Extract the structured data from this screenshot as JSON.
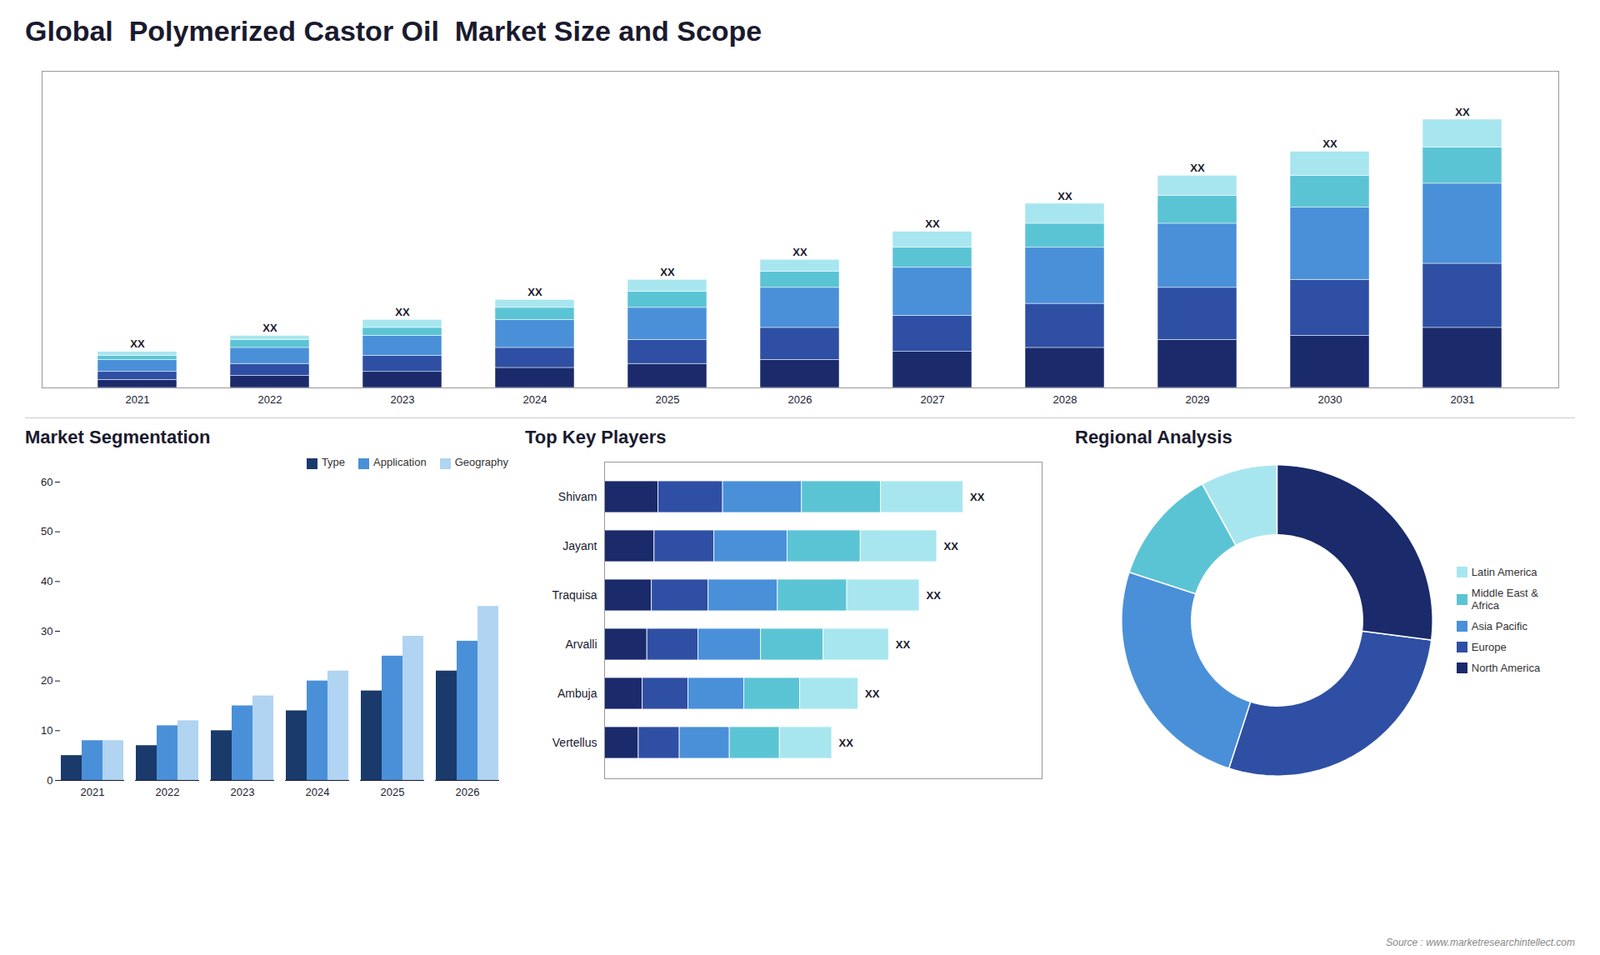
{
  "title": "Global  Polymerized Castor Oil  Market Size and Scope",
  "annotations": [
    "Source : www.marketresearchintellect.com"
  ],
  "chart_data": [
    {
      "type": "bar",
      "stacked": true,
      "categories": [
        "2021",
        "2022",
        "2023",
        "2024",
        "2025",
        "2026",
        "2027",
        "2028",
        "2029",
        "2030",
        "2031"
      ],
      "series": [
        {
          "color": "#1a2a6b",
          "values": [
            2,
            3,
            4,
            5,
            6,
            7,
            9,
            10,
            12,
            13,
            15
          ]
        },
        {
          "color": "#2e4fa3",
          "values": [
            2,
            3,
            4,
            5,
            6,
            8,
            9,
            11,
            13,
            14,
            16
          ]
        },
        {
          "color": "#4a90d9",
          "values": [
            3,
            4,
            5,
            7,
            8,
            10,
            12,
            14,
            16,
            18,
            20
          ]
        },
        {
          "color": "#5bc4d4",
          "values": [
            1,
            2,
            2,
            3,
            4,
            4,
            5,
            6,
            7,
            8,
            9
          ]
        },
        {
          "color": "#a8e6ef",
          "values": [
            1,
            1,
            2,
            2,
            3,
            3,
            4,
            5,
            5,
            6,
            7
          ]
        }
      ],
      "ylim": [
        0,
        79.06
      ],
      "tick_labels": "x",
      "grid": false,
      "annotations": [
        "XX",
        "XX",
        "XX",
        "XX",
        "XX",
        "XX",
        "XX",
        "XX",
        "XX",
        "XX",
        "XX"
      ]
    },
    {
      "type": "bar",
      "title": "Market Segmentation",
      "categories": [
        "2021",
        "2022",
        "2023",
        "2024",
        "2025",
        "2026"
      ],
      "series": [
        {
          "name": "Type",
          "color": "#1a3a6b",
          "values": [
            5,
            7,
            10,
            14,
            18,
            22
          ]
        },
        {
          "name": "Application",
          "color": "#4a90d9",
          "values": [
            8,
            11,
            15,
            20,
            25,
            28
          ]
        },
        {
          "name": "Geography",
          "color": "#b0d4f1",
          "values": [
            8,
            12,
            17,
            22,
            29,
            35
          ]
        }
      ],
      "ylim": [
        0,
        60
      ],
      "yticks": [
        0,
        10,
        20,
        30,
        40,
        50,
        60
      ],
      "legend": "upper right",
      "grid": false
    },
    {
      "type": "bar",
      "title": "Top Key Players",
      "orientation": "horizontal",
      "stacked": true,
      "categories": [
        "Shivam",
        "Jayant",
        "Traquisa",
        "Arvalli",
        "Ambuja",
        "Vertellus"
      ],
      "series": [
        {
          "color": "#1a2a6b",
          "values": [
            0.123,
            0.114,
            0.108,
            0.0975,
            0.087,
            0.078
          ]
        },
        {
          "color": "#2e4fa3",
          "values": [
            0.1476,
            0.1368,
            0.1296,
            0.117,
            0.1044,
            0.0936
          ]
        },
        {
          "color": "#4a90d9",
          "values": [
            0.1804,
            0.1672,
            0.1584,
            0.143,
            0.1276,
            0.1144
          ]
        },
        {
          "color": "#5bc4d4",
          "values": [
            0.1804,
            0.1672,
            0.1584,
            0.143,
            0.1276,
            0.1144
          ]
        },
        {
          "color": "#a8e6ef",
          "values": [
            0.1886,
            0.1748,
            0.1656,
            0.1495,
            0.1334,
            0.1196
          ]
        }
      ],
      "xlim": [
        0,
        1
      ],
      "tick_labels": "y",
      "grid": false,
      "annotations": [
        "XX",
        "XX",
        "XX",
        "XX",
        "XX",
        "XX"
      ]
    },
    {
      "type": "donut",
      "title": "Regional Analysis",
      "categories": [
        "Latin America",
        "Middle East &\nAfrica",
        "Asia Pacific",
        "Europe",
        "North America"
      ],
      "values": [
        8,
        12,
        25,
        28,
        27
      ],
      "colors": [
        "#a8e6ef",
        "#5bc4d4",
        "#4a90d9",
        "#2e4fa3",
        "#1a2a6b"
      ],
      "legend": "right"
    }
  ]
}
